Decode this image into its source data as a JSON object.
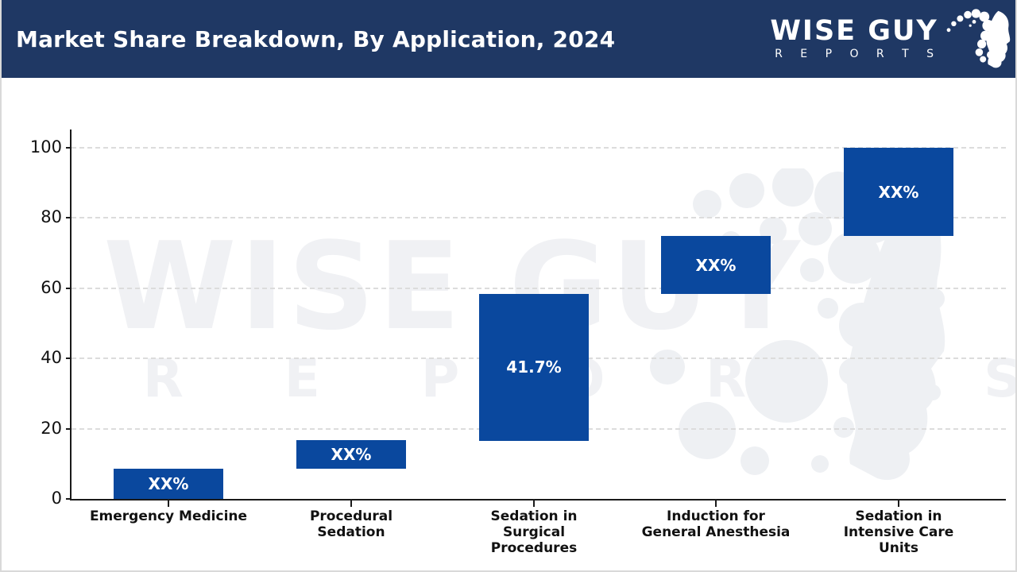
{
  "header": {
    "title": "Market Share Breakdown, By Application, 2024",
    "bg_color": "#1f3864",
    "logo": {
      "line1": "WISE GUY",
      "line2": "R E P O R T S",
      "head_icon": "dotted-head-profile"
    }
  },
  "watermark": {
    "line1": "WISE GUY",
    "line2": "R E P O R T S",
    "color": "#f0f1f4"
  },
  "chart_data": {
    "type": "bar",
    "subtype": "waterfall-floating-bars",
    "title": "",
    "xlabel": "",
    "ylabel": "",
    "ylim": [
      0,
      105
    ],
    "y_ticks": [
      0,
      20,
      40,
      60,
      80,
      100
    ],
    "grid": "horizontal-dashed",
    "legend": "none",
    "bar_color": "#0a489e",
    "categories": [
      "Emergency Medicine",
      "Procedural Sedation",
      "Sedation in Surgical Procedures",
      "Induction for General Anesthesia",
      "Sedation in Intensive Care Units"
    ],
    "segments": [
      {
        "category": "Emergency Medicine",
        "start": 0,
        "end": 8.5,
        "label": "XX%",
        "axis_label_lines": [
          "Emergency Medicine"
        ]
      },
      {
        "category": "Procedural Sedation",
        "start": 8.5,
        "end": 16.7,
        "label": "XX%",
        "axis_label_lines": [
          "Procedural",
          "Sedation"
        ]
      },
      {
        "category": "Sedation in Surgical Procedures",
        "start": 16.6,
        "end": 58.3,
        "label": "41.7%",
        "axis_label_lines": [
          "Sedation in",
          "Surgical",
          "Procedures"
        ]
      },
      {
        "category": "Induction for General Anesthesia",
        "start": 58.3,
        "end": 74.8,
        "label": "XX%",
        "axis_label_lines": [
          "Induction for",
          "General Anesthesia"
        ]
      },
      {
        "category": "Sedation in Intensive Care Units",
        "start": 74.8,
        "end": 100,
        "label": "XX%",
        "axis_label_lines": [
          "Sedation in",
          "Intensive Care",
          "Units"
        ]
      }
    ]
  }
}
